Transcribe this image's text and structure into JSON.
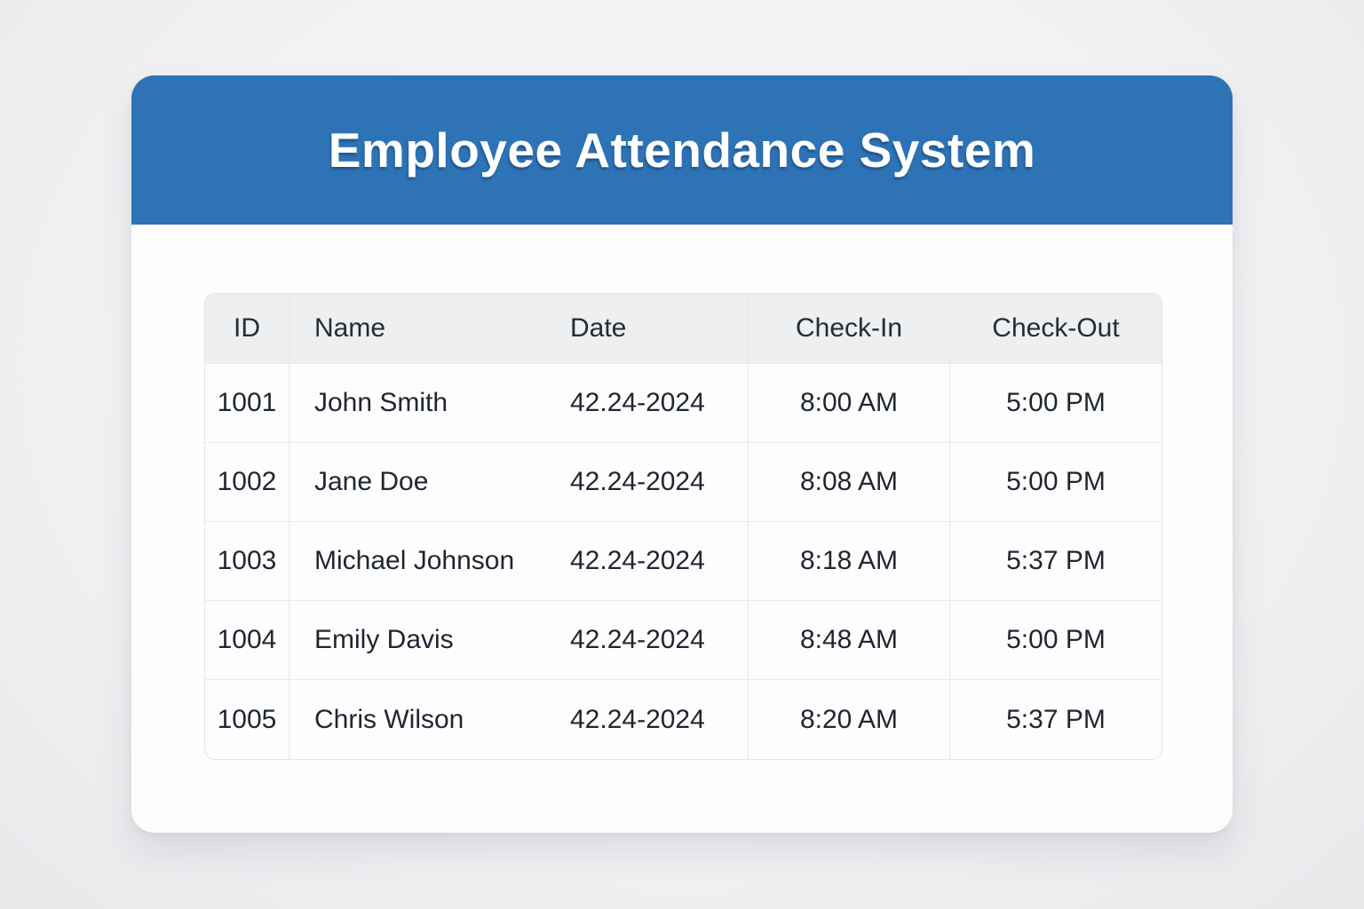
{
  "header": {
    "title": "Employee Attendance System"
  },
  "colors": {
    "header_bg": "#2d73b6",
    "title_text": "#ffffff",
    "card_bg": "#fdfdfe",
    "table_header_bg": "#edeff1",
    "table_border": "#e2e4e7",
    "body_text": "#1e2630",
    "page_bg": "#f2f2f4"
  },
  "table": {
    "columns": [
      {
        "key": "id",
        "label": "ID"
      },
      {
        "key": "name",
        "label": "Name"
      },
      {
        "key": "date",
        "label": "Date"
      },
      {
        "key": "checkin",
        "label": "Check-In"
      },
      {
        "key": "checkout",
        "label": "Check-Out"
      }
    ],
    "rows": [
      {
        "id": "1001",
        "name": "John Smith",
        "date": "42.24-2024",
        "checkin": "8:00 AM",
        "checkout": "5:00 PM"
      },
      {
        "id": "1002",
        "name": "Jane Doe",
        "date": "42.24-2024",
        "checkin": "8:08 AM",
        "checkout": "5:00 PM"
      },
      {
        "id": "1003",
        "name": "Michael Johnson",
        "date": "42.24-2024",
        "checkin": "8:18 AM",
        "checkout": "5:37 PM"
      },
      {
        "id": "1004",
        "name": "Emily Davis",
        "date": "42.24-2024",
        "checkin": "8:48 AM",
        "checkout": "5:00 PM"
      },
      {
        "id": "1005",
        "name": "Chris Wilson",
        "date": "42.24-2024",
        "checkin": "8:20 AM",
        "checkout": "5:37 PM"
      }
    ]
  }
}
